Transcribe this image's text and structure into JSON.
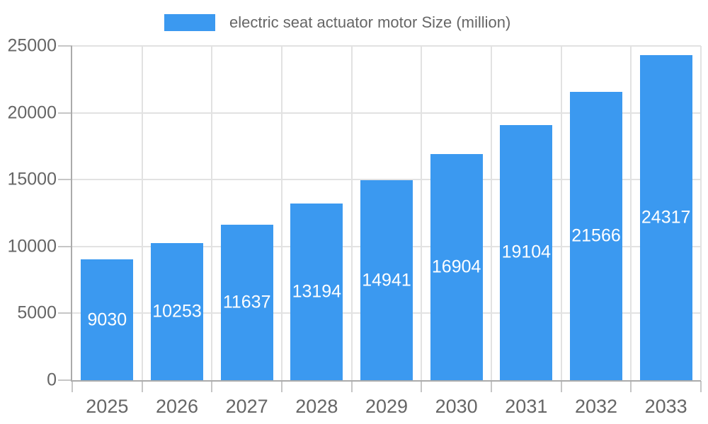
{
  "chart_data": {
    "type": "bar",
    "legend_label": "electric seat actuator motor Size (million)",
    "categories": [
      "2025",
      "2026",
      "2027",
      "2028",
      "2029",
      "2030",
      "2031",
      "2032",
      "2033"
    ],
    "values": [
      9030,
      10253,
      11637,
      13194,
      14941,
      16904,
      19104,
      21566,
      24317
    ],
    "title": "",
    "xlabel": "",
    "ylabel": "",
    "ylim": [
      0,
      25000
    ],
    "yticks": [
      0,
      5000,
      10000,
      15000,
      20000,
      25000
    ],
    "grid": true,
    "legend_position": "top-center",
    "bar_color": "#3b99f0",
    "text_color": "#666666",
    "grid_color": "#e2e2e2",
    "axis_color": "#ababab",
    "tick_color": "#c6c6c6",
    "bar_label_color": "#ffffff"
  }
}
